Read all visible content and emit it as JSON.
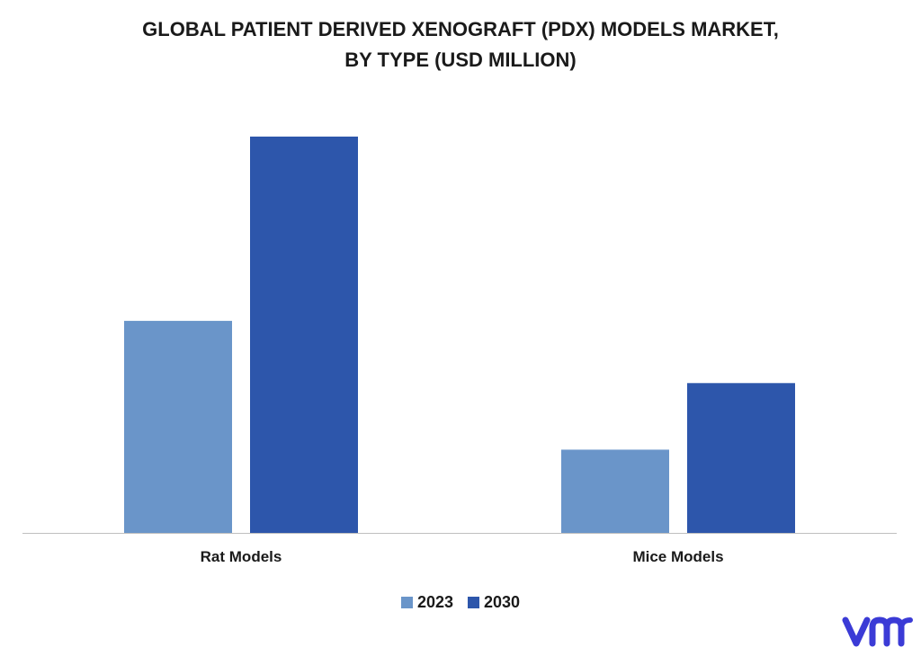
{
  "title_line1": "GLOBAL PATIENT DERIVED XENOGRAFT (PDX) MODELS MARKET,",
  "title_line2": "BY TYPE (USD MILLION)",
  "colors": {
    "series_2023": "#6a95c9",
    "series_2030": "#2d56ab",
    "axis": "#bfbfbf",
    "logo": "#3b3bd6"
  },
  "logo_icon": "vmr-logo-icon",
  "chart_data": {
    "type": "bar",
    "title": "GLOBAL PATIENT DERIVED XENOGRAFT (PDX) MODELS MARKET, BY TYPE (USD MILLION)",
    "categories": [
      "Rat Models",
      "Mice Models"
    ],
    "series": [
      {
        "name": "2023",
        "values": [
          53.5,
          21.0
        ]
      },
      {
        "name": "2030",
        "values": [
          100.0,
          37.8
        ]
      }
    ],
    "ylim": [
      0,
      100
    ],
    "grid": false,
    "legend_position": "bottom"
  }
}
